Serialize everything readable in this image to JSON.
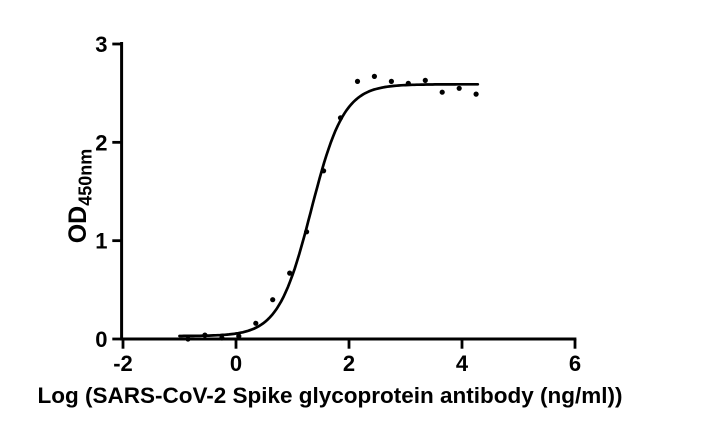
{
  "figure": {
    "background_color": "#ffffff",
    "ink_color": "#000000"
  },
  "chart_data": {
    "type": "scatter",
    "subtype": "sigmoidal dose-response with 4PL fit line",
    "title": "",
    "xlabel": "Log (SARS-CoV-2 Spike glycoprotein antibody (ng/ml))",
    "ylabel_main": "OD",
    "ylabel_sub": "450nm",
    "xlim": [
      -2,
      6
    ],
    "ylim": [
      0,
      3
    ],
    "xticks": [
      -2,
      0,
      2,
      4,
      6
    ],
    "yticks": [
      0,
      1,
      2,
      3
    ],
    "grid": false,
    "legend": false,
    "marker": "filled-circle",
    "marker_color": "#000000",
    "line_color": "#000000",
    "points": [
      {
        "x": -0.85,
        "y": 0.0
      },
      {
        "x": -0.55,
        "y": 0.04
      },
      {
        "x": -0.25,
        "y": 0.01
      },
      {
        "x": 0.05,
        "y": 0.03
      },
      {
        "x": 0.35,
        "y": 0.16
      },
      {
        "x": 0.65,
        "y": 0.4
      },
      {
        "x": 0.95,
        "y": 0.67
      },
      {
        "x": 1.25,
        "y": 1.09
      },
      {
        "x": 1.55,
        "y": 1.71
      },
      {
        "x": 1.85,
        "y": 2.25
      },
      {
        "x": 2.15,
        "y": 2.62
      },
      {
        "x": 2.45,
        "y": 2.67
      },
      {
        "x": 2.75,
        "y": 2.62
      },
      {
        "x": 3.05,
        "y": 2.6
      },
      {
        "x": 3.35,
        "y": 2.63
      },
      {
        "x": 3.65,
        "y": 2.51
      },
      {
        "x": 3.95,
        "y": 2.55
      },
      {
        "x": 4.25,
        "y": 2.49
      }
    ],
    "fit_curve": {
      "model": "4PL",
      "bottom": 0.03,
      "top": 2.59,
      "log_ec50": 1.33,
      "hill": 1.5,
      "x_start": -1.0,
      "x_end": 4.3
    }
  }
}
